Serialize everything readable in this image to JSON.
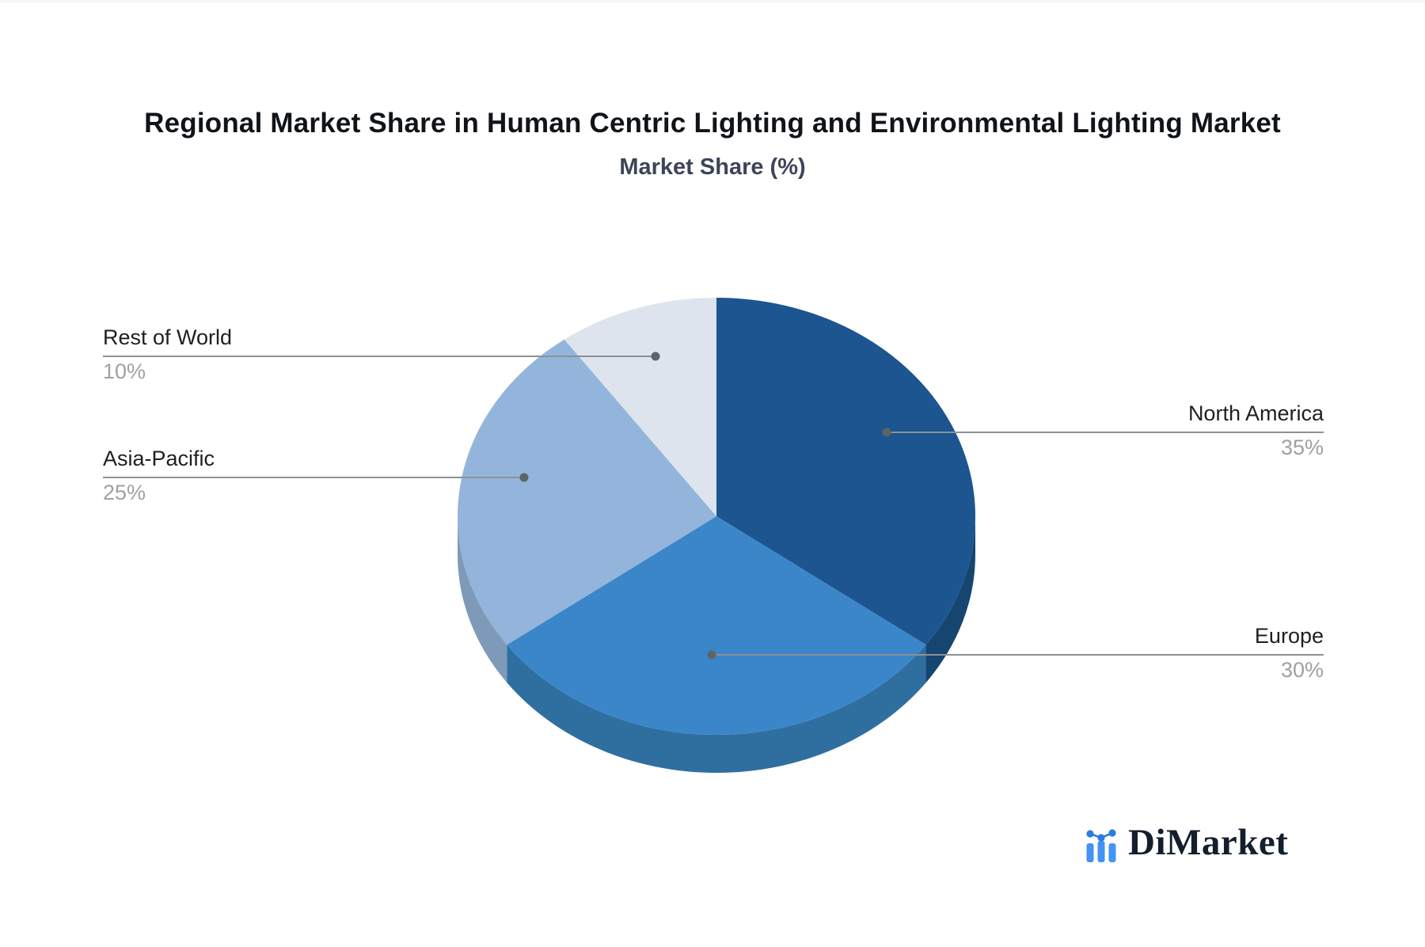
{
  "chart_data": {
    "type": "pie",
    "title": "Regional Market Share in Human Centric Lighting and Environmental Lighting Market",
    "subtitle": "Market Share (%)",
    "labels": [
      "North America",
      "Europe",
      "Asia-Pacific",
      "Rest of World"
    ],
    "values": [
      35,
      30,
      25,
      10
    ],
    "value_labels": [
      "35%",
      "30%",
      "25%",
      "10%"
    ],
    "unit": "%",
    "style": "3d-pie",
    "start_angle_deg": 0,
    "direction": "clockwise",
    "colors": [
      "#1C5590",
      "#3A86C9",
      "#93B5DB",
      "#DDE4EE"
    ],
    "side_colors": [
      "#164570",
      "#2F6FA0",
      "#7E9AB8",
      "#B9C3D2"
    ],
    "label_style": "callout-leader-lines",
    "label_name_color": "#1F1F1F",
    "label_value_color": "#A0A0A0",
    "leader_line_color": "#8D9196",
    "leader_dot_color": "#5E6468"
  },
  "branding": {
    "logo_text": "DiMarket",
    "logo_icon": "bar-chart-logo-icon",
    "logo_bar_color": "#4493F5",
    "logo_accent_color": "#2C7BE0",
    "logo_text_color": "#141E2C"
  }
}
